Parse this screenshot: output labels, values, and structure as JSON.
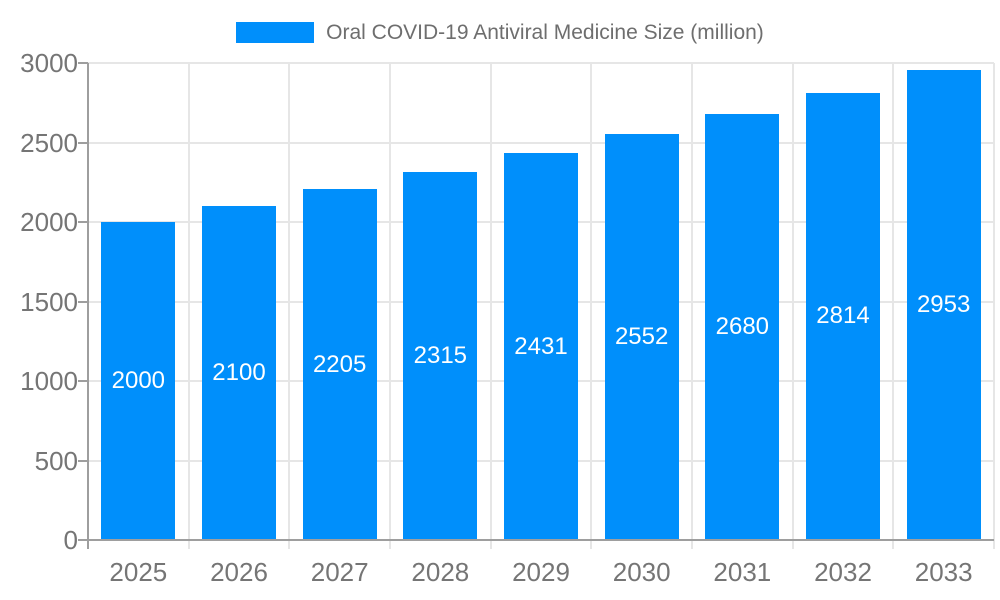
{
  "chart_data": {
    "type": "bar",
    "title": "",
    "legend_label": "Oral COVID-19 Antiviral Medicine Size (million)",
    "categories": [
      "2025",
      "2026",
      "2027",
      "2028",
      "2029",
      "2030",
      "2031",
      "2032",
      "2033"
    ],
    "values": [
      2000,
      2100,
      2205,
      2315,
      2431,
      2552,
      2680,
      2814,
      2953
    ],
    "data_labels": [
      2000,
      2100,
      2205,
      2315,
      2431,
      2552,
      2680,
      2814,
      2953
    ],
    "xlabel": "",
    "ylabel": "",
    "ylim": [
      0,
      3000
    ],
    "ytick_step": 500,
    "y_tick_labels": [
      "0",
      "500",
      "1000",
      "1500",
      "2000",
      "2500",
      "3000"
    ],
    "grid": true,
    "legend_position": "top-center",
    "data_label_position": "inside-center",
    "colors": {
      "bar": "#008FFB",
      "grid": "#E6E6E6",
      "axis_line": "#9E9E9E",
      "tick_text": "#757575",
      "legend_text": "#6E6E6E",
      "data_label_text": "#FFFFFF",
      "background": "#FFFFFF"
    }
  }
}
